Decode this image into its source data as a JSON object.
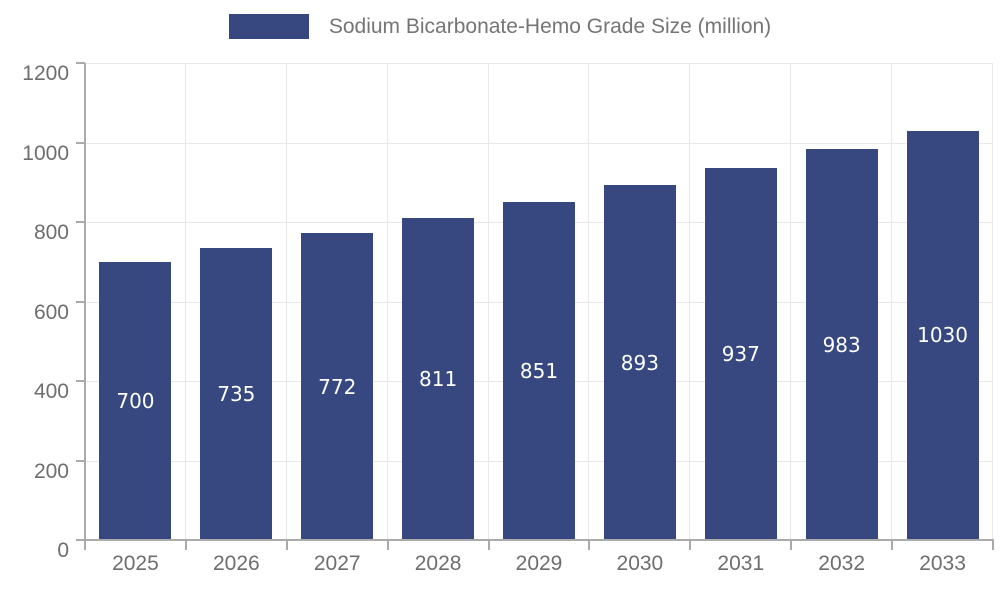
{
  "legend": {
    "label": "Sodium Bicarbonate-Hemo Grade Size (million)"
  },
  "colors": {
    "bar": "#36487F",
    "axis": "#aaaaaa",
    "grid": "#e8e8e8",
    "tick_text": "#6e6e6e",
    "legend_text": "#757575",
    "bar_label_text": "#ffffff"
  },
  "chart_data": {
    "type": "bar",
    "title": "Sodium Bicarbonate-Hemo Grade Size (million)",
    "categories": [
      "2025",
      "2026",
      "2027",
      "2028",
      "2029",
      "2030",
      "2031",
      "2032",
      "2033"
    ],
    "values": [
      700,
      735,
      772,
      811,
      851,
      893,
      937,
      983,
      1030
    ],
    "xlabel": "",
    "ylabel": "",
    "ylim": [
      0,
      1200
    ],
    "yticks": [
      0,
      200,
      400,
      600,
      800,
      1000,
      1200
    ],
    "grid": true,
    "legend_position": "top-center",
    "value_labels": "inside-center"
  }
}
